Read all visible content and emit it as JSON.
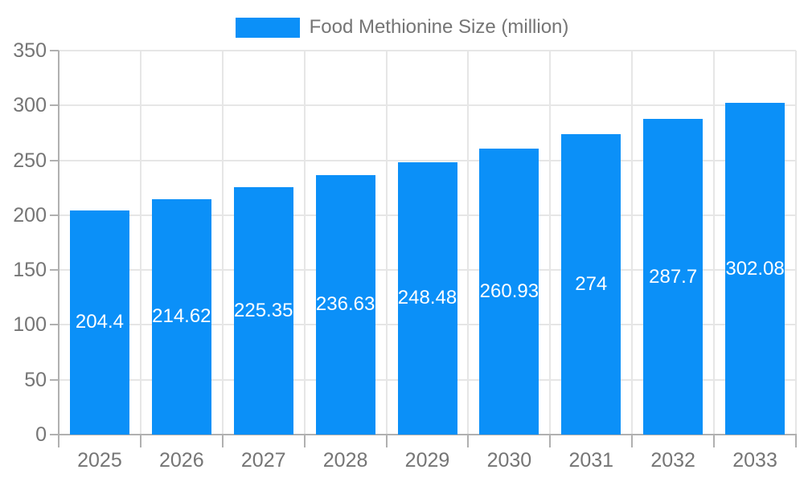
{
  "chart_data": {
    "type": "bar",
    "title": "",
    "legend": "Food Methionine Size (million)",
    "legend_position": "top",
    "categories": [
      "2025",
      "2026",
      "2027",
      "2028",
      "2029",
      "2030",
      "2031",
      "2032",
      "2033"
    ],
    "series": [
      {
        "name": "Food Methionine Size (million)",
        "values": [
          204.4,
          214.62,
          225.35,
          236.63,
          248.48,
          260.93,
          274,
          287.7,
          302.08
        ]
      }
    ],
    "value_labels": [
      "204.4",
      "214.62",
      "225.35",
      "236.63",
      "248.48",
      "260.93",
      "274",
      "287.7",
      "302.08"
    ],
    "xlabel": "",
    "ylabel": "",
    "yticks": [
      0,
      50,
      100,
      150,
      200,
      250,
      300,
      350
    ],
    "ylim": [
      0,
      350
    ],
    "grid": true,
    "colors": {
      "bar": "#0b90f8",
      "value_label": "#ffffff",
      "axis_text": "#757575",
      "axis_line": "#b0b0b0",
      "gridline": "#e6e6e6",
      "background": "#ffffff"
    }
  }
}
